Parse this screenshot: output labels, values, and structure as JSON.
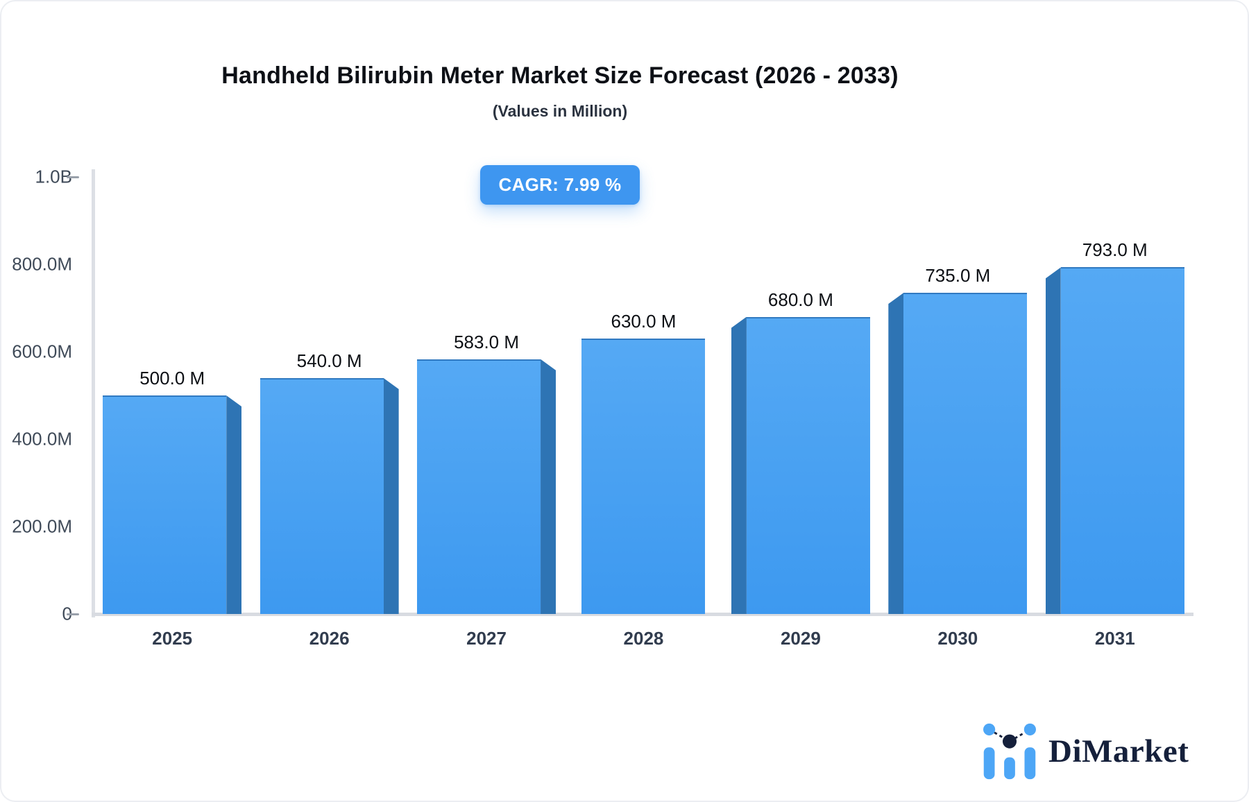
{
  "title": "Handheld Bilirubin Meter Market Size Forecast (2026 - 2033)",
  "subtitle": "(Values in Million)",
  "badge": {
    "label": "CAGR: 7.99 %"
  },
  "chart_data": {
    "type": "bar",
    "title": "Handheld Bilirubin Meter Market Size Forecast (2026 - 2033)",
    "subtitle": "(Values in Million)",
    "categories": [
      "2025",
      "2026",
      "2027",
      "2028",
      "2029",
      "2030",
      "2031"
    ],
    "values": [
      500,
      540,
      583,
      630,
      680,
      735,
      793
    ],
    "value_labels": [
      "500.0 M",
      "540.0 M",
      "583.0 M",
      "630.0 M",
      "680.0 M",
      "735.0 M",
      "793.0 M"
    ],
    "ylim": [
      0,
      1000
    ],
    "y_axis": [
      {
        "label": "1.0B",
        "value": 1000,
        "tick": true
      },
      {
        "label": "800.0M",
        "value": 800,
        "tick": false
      },
      {
        "label": "600.0M",
        "value": 600,
        "tick": false
      },
      {
        "label": "400.0M",
        "value": 400,
        "tick": false
      },
      {
        "label": "200.0M",
        "value": 200,
        "tick": false
      },
      {
        "label": "0",
        "value": 0,
        "tick": true
      }
    ],
    "grid": false,
    "legend": false
  },
  "logo": {
    "text": "DiMarket"
  },
  "colors": {
    "bar_top": "#55a9f4",
    "bar_bottom": "#3d99f0",
    "bar_side": "#2e74b4",
    "badge_bg": "#3e96f0",
    "logo_blue": "#4da6f6",
    "logo_navy": "#15203b"
  }
}
